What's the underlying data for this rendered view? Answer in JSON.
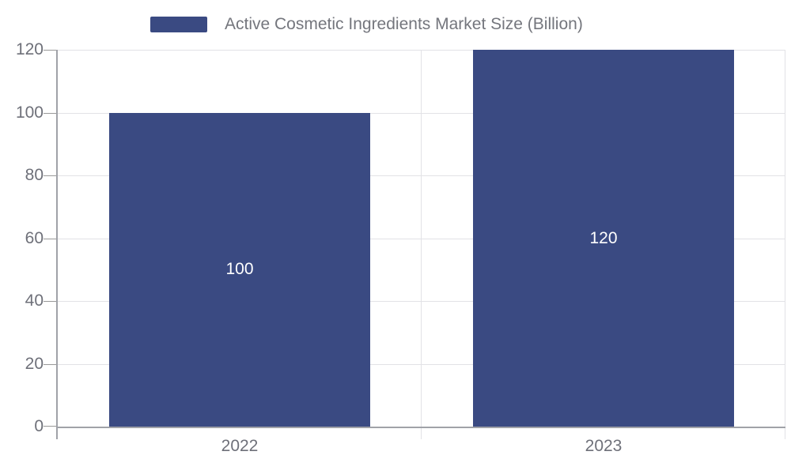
{
  "chart_data": {
    "type": "bar",
    "title": "Active Cosmetic Ingredients Market Size (Billion)",
    "legend": [
      "Active Cosmetic Ingredients Market Size (Billion)"
    ],
    "legend_position": "top",
    "categories": [
      "2022",
      "2023"
    ],
    "values": [
      100,
      120
    ],
    "xlabel": "",
    "ylabel": "",
    "y_ticks": [
      0,
      20,
      40,
      60,
      80,
      100,
      120
    ],
    "ylim": [
      0,
      120
    ],
    "grid": true,
    "colors": {
      "bar": "#3A4A82",
      "bar_label_text": "#FFFFFF",
      "axis_line": "#A0A2A8",
      "tick": "#999999",
      "gridline": "#E2E2E6",
      "axis_label_text": "#6E7079",
      "legend_text": "#74767D",
      "background": "#FFFFFF"
    }
  }
}
